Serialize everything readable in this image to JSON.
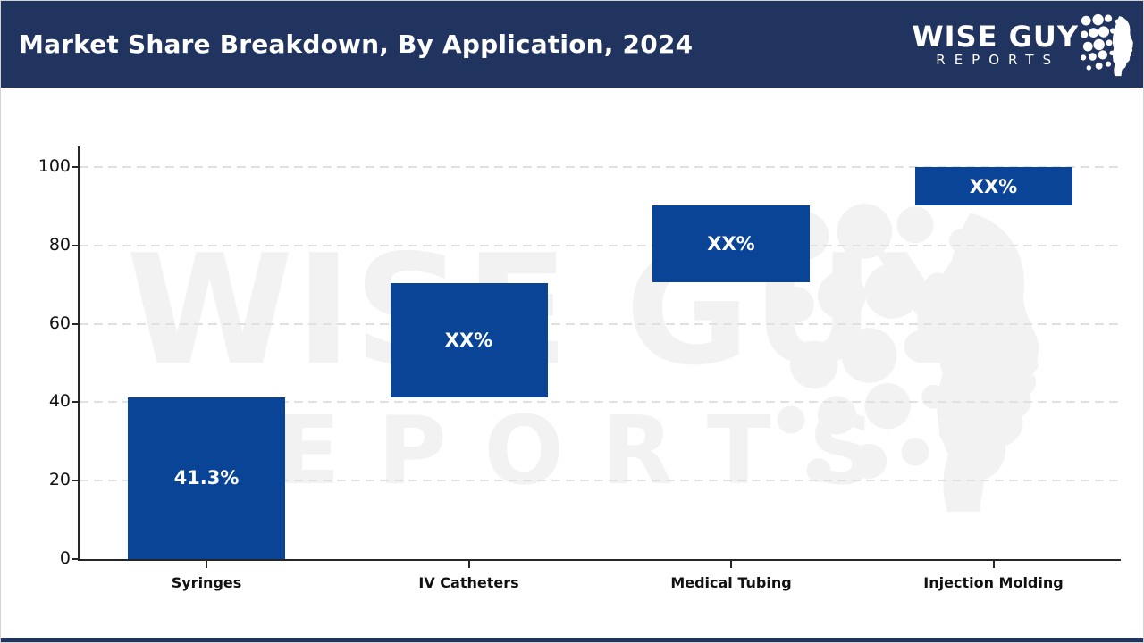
{
  "header": {
    "title": "Market Share Breakdown, By Application, 2024",
    "logo": {
      "line1": "WISE GUY",
      "line2": "REPORTS"
    }
  },
  "watermark": {
    "line1": "WISE GUY",
    "line2": "REPORTS"
  },
  "chart_data": {
    "type": "bar",
    "subtype": "waterfall",
    "title": "Market Share Breakdown, By Application, 2024",
    "xlabel": "",
    "ylabel": "",
    "categories": [
      "Syringes",
      "IV Catheters",
      "Medical Tubing",
      "Injection Molding"
    ],
    "segments": [
      {
        "category": "Syringes",
        "start": 0,
        "end": 41.3,
        "value": 41.3,
        "label": "41.3%"
      },
      {
        "category": "IV Catheters",
        "start": 41.3,
        "end": 70.5,
        "value": 29.2,
        "label": "XX%"
      },
      {
        "category": "Medical Tubing",
        "start": 70.5,
        "end": 90.2,
        "value": 19.7,
        "label": "XX%"
      },
      {
        "category": "Injection Molding",
        "start": 90.2,
        "end": 100.0,
        "value": 9.8,
        "label": "XX%"
      }
    ],
    "yticks": [
      0,
      20,
      40,
      60,
      80,
      100
    ],
    "ylim": [
      0,
      105
    ],
    "grid": "horizontal-dashed",
    "legend": "none",
    "bar_color": "#0a4497",
    "value_label_color": "#ffffff"
  },
  "colors": {
    "header_bg": "#21345f",
    "footer_bg": "#21345f",
    "bar": "#0a4497",
    "grid": "#e1e1e1",
    "axis": "#262626",
    "watermark": "#f2f2f2",
    "title_text": "#ffffff"
  }
}
